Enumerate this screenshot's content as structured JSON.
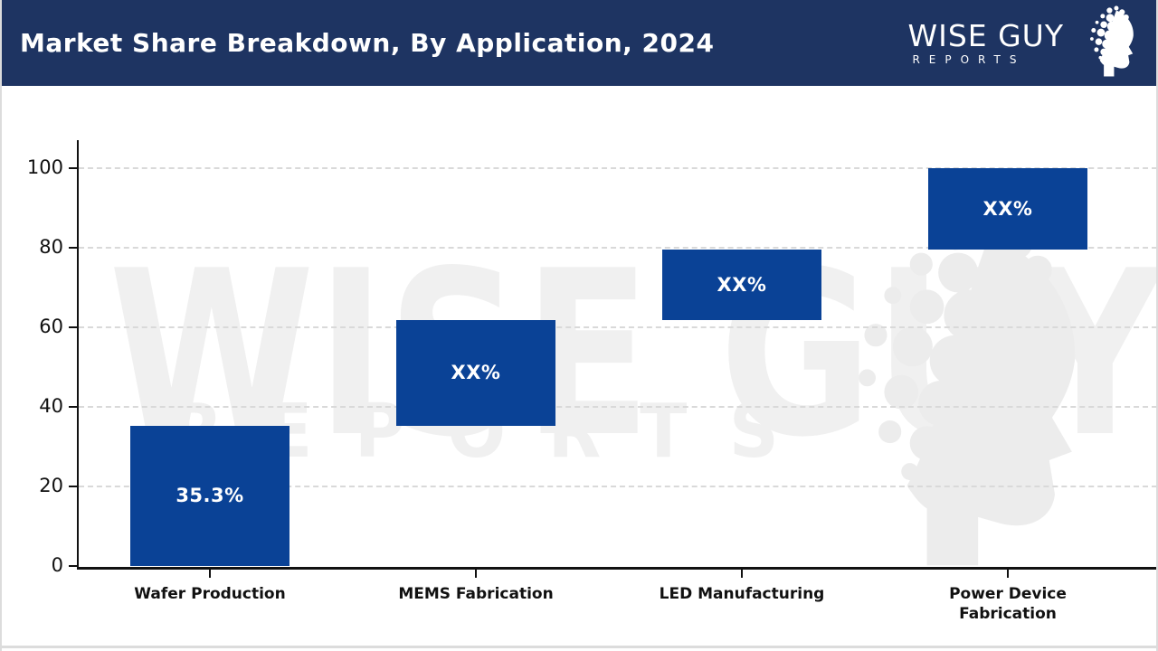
{
  "header": {
    "title": "Market Share Breakdown, By Application, 2024",
    "logo": {
      "line1": "WISE GUY",
      "line2": "REPORTS"
    }
  },
  "watermark": {
    "line1": "WISE GUY",
    "line2": "REPORTS"
  },
  "colors": {
    "header_bg": "#1e3462",
    "title": "#ffffff",
    "bar": "#0a4296",
    "bar_label": "#ffffff",
    "grid": "#d9d9d9",
    "axis": "#111111",
    "watermark": "#f0f0f0",
    "watermark_head": "#ececec",
    "border": "#dcdcdc"
  },
  "chart_data": {
    "type": "bar",
    "variant": "waterfall",
    "title": "Market Share Breakdown, By Application, 2024",
    "categories": [
      "Wafer Production",
      "MEMS Fabrication",
      "LED Manufacturing",
      "Power Device Fabrication"
    ],
    "bars": [
      {
        "category": "Wafer Production",
        "start": 0,
        "end": 35.3,
        "label": "35.3%"
      },
      {
        "category": "MEMS Fabrication",
        "start": 35.3,
        "end": 61.8,
        "label": "XX%"
      },
      {
        "category": "LED Manufacturing",
        "start": 61.8,
        "end": 79.5,
        "label": "XX%"
      },
      {
        "category": "Power Device Fabrication",
        "start": 79.5,
        "end": 100,
        "label": "XX%"
      }
    ],
    "xlabel": "",
    "ylabel": "",
    "ylim": [
      0,
      107
    ],
    "yticks": [
      0,
      20,
      40,
      60,
      80,
      100
    ],
    "grid": "horizontal-dashed",
    "legend": null
  }
}
